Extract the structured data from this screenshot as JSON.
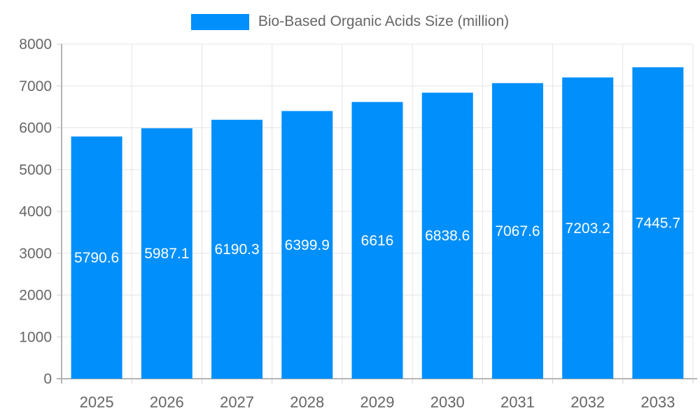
{
  "legend": {
    "label": "Bio-Based Organic Acids Size (million)",
    "swatch_color": "#008FFB"
  },
  "chart_data": {
    "type": "bar",
    "title": "",
    "xlabel": "",
    "ylabel": "",
    "categories": [
      "2025",
      "2026",
      "2027",
      "2028",
      "2029",
      "2030",
      "2031",
      "2032",
      "2033"
    ],
    "series": [
      {
        "name": "Bio-Based Organic Acids Size (million)",
        "values": [
          5790.6,
          5987.1,
          6190.3,
          6399.9,
          6616,
          6838.6,
          7067.6,
          7203.2,
          7445.7
        ]
      }
    ],
    "value_labels": [
      "5790.6",
      "5987.1",
      "6190.3",
      "6399.9",
      "6616",
      "6838.6",
      "7067.6",
      "7203.2",
      "7445.7"
    ],
    "ylim": [
      0,
      8000
    ],
    "ytick_step": 1000,
    "ytick_labels": [
      "0",
      "1000",
      "2000",
      "3000",
      "4000",
      "5000",
      "6000",
      "7000",
      "8000"
    ],
    "grid": true,
    "legend_position": "top",
    "colors": {
      "bar": "#008FFB",
      "value_label": "#ffffff",
      "gridline": "#e5e5e5",
      "tick_mark": "#cfcfcf",
      "axis_line": "#b4b4b4",
      "axis_label": "#666666"
    }
  }
}
